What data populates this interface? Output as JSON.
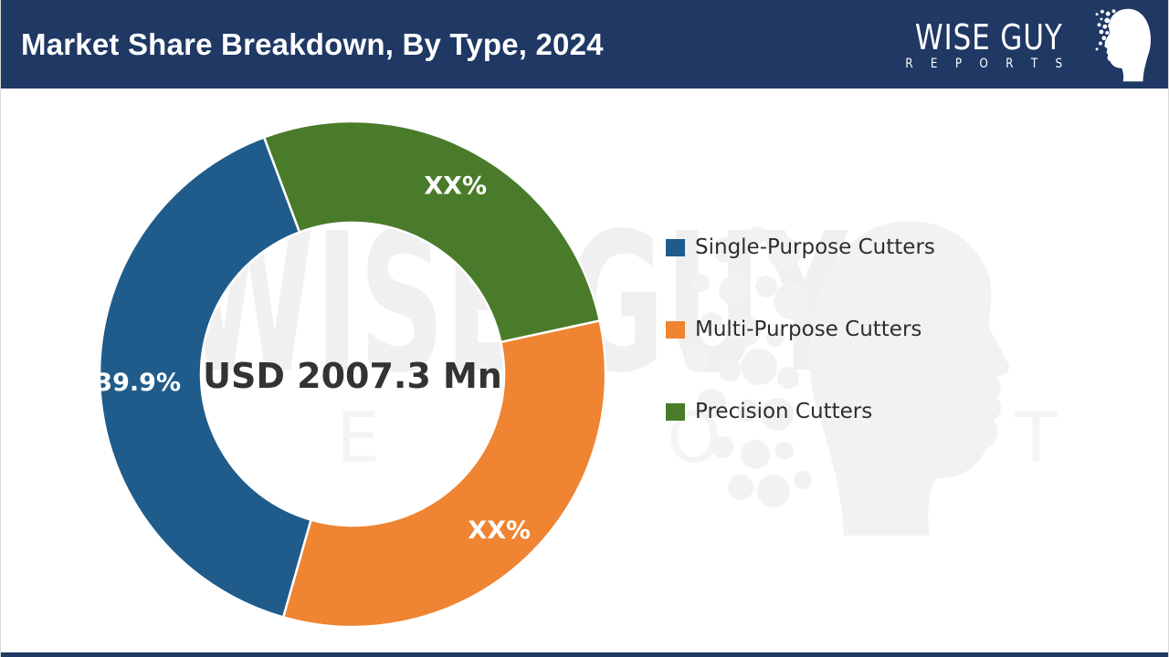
{
  "header": {
    "title": "Market Share Breakdown, By Type, 2024",
    "brand": {
      "line1": "WISE GUY",
      "line2": "R E P O R T S"
    }
  },
  "watermark": {
    "line1": "WISE GUY",
    "line2": "R E P O R T S"
  },
  "legend": {
    "items": [
      {
        "label": "Single-Purpose Cutters",
        "color": "#1F5C8B"
      },
      {
        "label": "Multi-Purpose Cutters",
        "color": "#EF8432"
      },
      {
        "label": "Precision Cutters",
        "color": "#4A7B2A"
      }
    ]
  },
  "chart_data": {
    "type": "pie",
    "subtype": "donut",
    "title": "Market Share Breakdown, By Type, 2024",
    "center_text": "USD 2007.3 Mn",
    "units": "percent share",
    "start_angle_deg": 12.2,
    "direction": "counterclockwise",
    "legend_position": "right",
    "slices": [
      {
        "name": "Precision Cutters",
        "value": 27.3,
        "display_label": "XX%",
        "color": "#4A7B2A"
      },
      {
        "name": "Single-Purpose Cutters",
        "value": 39.9,
        "display_label": "39.9%",
        "color": "#1F5C8B"
      },
      {
        "name": "Multi-Purpose Cutters",
        "value": 32.8,
        "display_label": "XX%",
        "color": "#EF8432"
      }
    ]
  },
  "colors": {
    "header_bg": "#1F3864",
    "bottom_bar": "#1F3864",
    "center_text": "#333333",
    "watermark": "#f0f0f0"
  }
}
